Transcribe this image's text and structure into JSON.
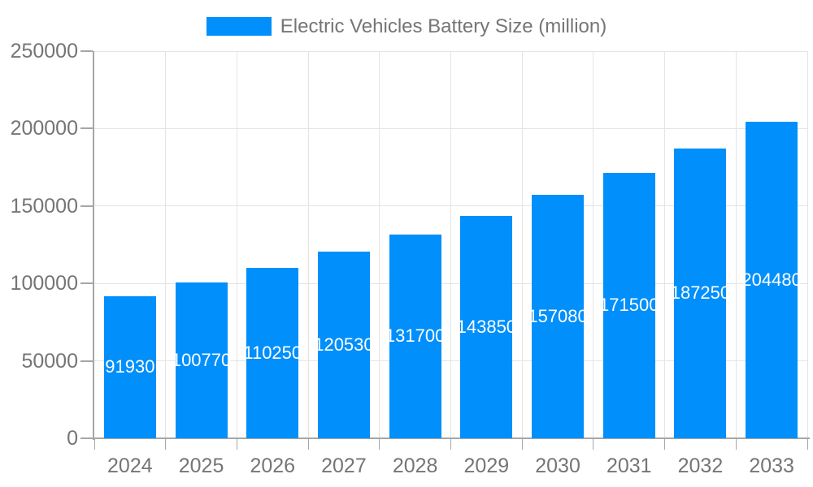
{
  "chart_data": {
    "type": "bar",
    "title": "Electric Vehicles Battery Size (million)",
    "categories": [
      "2024",
      "2025",
      "2026",
      "2027",
      "2028",
      "2029",
      "2030",
      "2031",
      "2032",
      "2033"
    ],
    "values": [
      91930,
      100770,
      110250,
      120530,
      131700,
      143850,
      157080,
      171500,
      187250,
      204480
    ],
    "xlabel": "",
    "ylabel": "",
    "ylim": [
      0,
      250000
    ],
    "yticks": [
      0,
      50000,
      100000,
      150000,
      200000,
      250000
    ],
    "grid": "both",
    "legend_position": "top-center",
    "value_label_position": "inside-center",
    "colors": {
      "bar": "#008FFB",
      "value_label": "#ffffff",
      "axis_label": "#757575",
      "legend_label": "#757575",
      "gridline": "#e4e4e4",
      "axis_line": "#a6a6a6",
      "background": "#ffffff"
    }
  }
}
